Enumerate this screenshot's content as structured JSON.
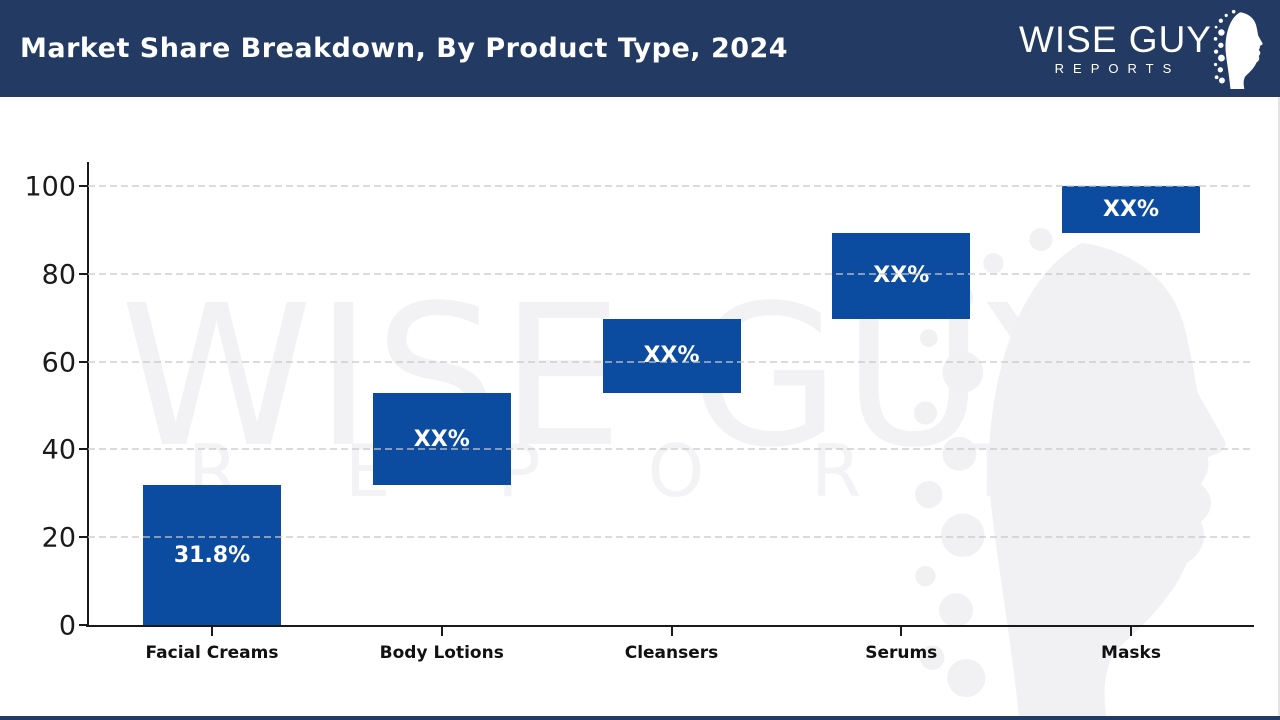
{
  "header": {
    "title": "Market Share Breakdown, By Product Type, 2024",
    "logo": {
      "line1": "WISE GUY",
      "line2": "REPORTS"
    }
  },
  "watermark": {
    "line1": "WISE GUY",
    "line2": "R E P O R T S"
  },
  "colors": {
    "header_bg": "#233A63",
    "bar": "#0B4BA0",
    "bar_label_text": "#FFFFFF",
    "gridline": "#C8C8C8",
    "axis": "#1A1A1A",
    "watermark": "#F2F2F4"
  },
  "chart_data": {
    "type": "bar",
    "subtype": "waterfall",
    "title": "Market Share Breakdown, By Product Type, 2024",
    "xlabel": "",
    "ylabel": "",
    "categories": [
      "Facial Creams",
      "Body Lotions",
      "Cleansers",
      "Serums",
      "Masks"
    ],
    "segments": [
      {
        "category": "Facial Creams",
        "start": 0,
        "end": 31.8,
        "label": "31.8%"
      },
      {
        "category": "Body Lotions",
        "start": 31.8,
        "end": 52.9,
        "label": "XX%"
      },
      {
        "category": "Cleansers",
        "start": 52.9,
        "end": 69.8,
        "label": "XX%"
      },
      {
        "category": "Serums",
        "start": 69.8,
        "end": 89.3,
        "label": "XX%"
      },
      {
        "category": "Masks",
        "start": 89.3,
        "end": 100,
        "label": "XX%"
      }
    ],
    "ylim": [
      0,
      100
    ],
    "yticks": [
      0,
      20,
      40,
      60,
      80,
      100
    ],
    "grid": "horizontal-dashed",
    "legend": "none",
    "bar_color": "#0B4BA0"
  }
}
